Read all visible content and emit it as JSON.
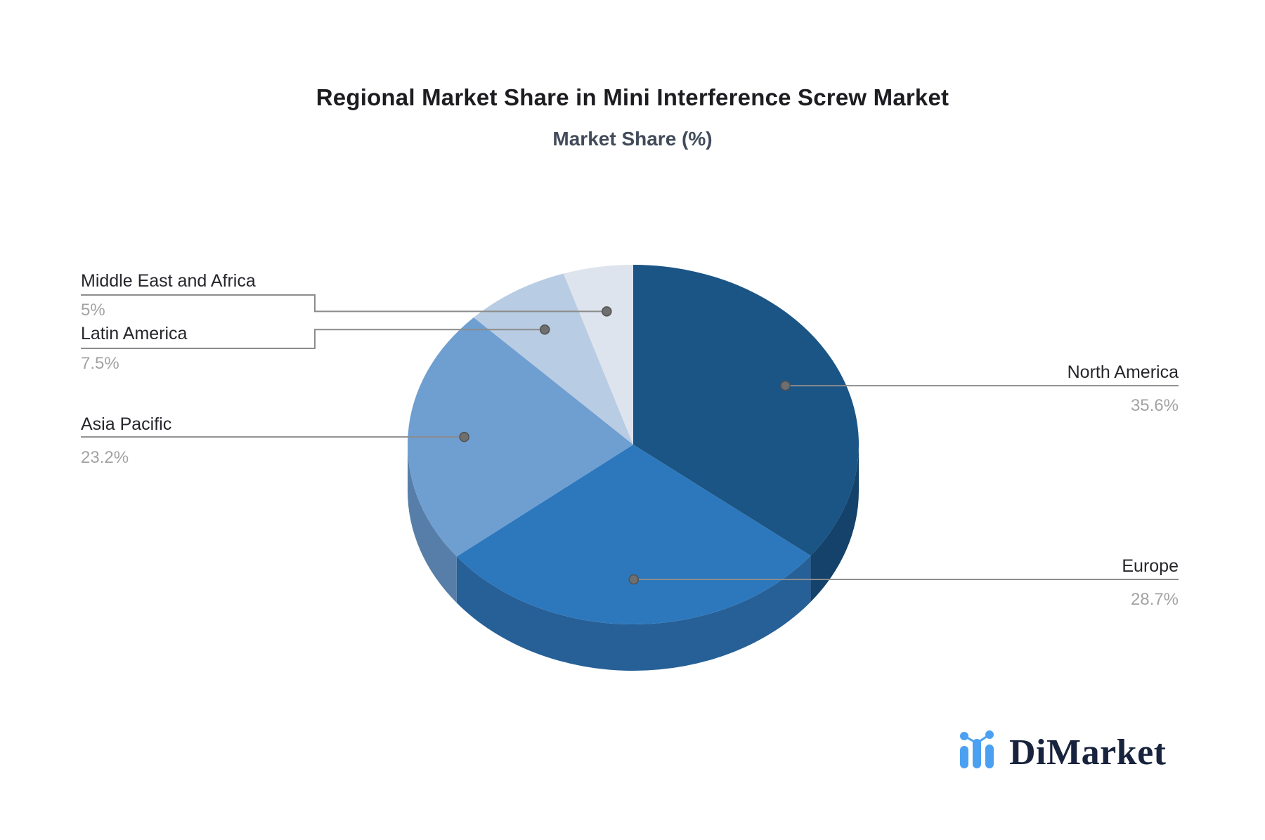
{
  "header": {
    "title": "Regional Market Share in Mini Interference Screw Market",
    "subtitle": "Market Share (%)"
  },
  "chart_data": {
    "type": "pie",
    "effect": "3d",
    "title": "Regional Market Share in Mini Interference Screw Market",
    "subtitle": "Market Share (%)",
    "unit": "%",
    "start_angle_deg": 0,
    "clockwise": true,
    "labels": [
      "North America",
      "Europe",
      "Asia Pacific",
      "Latin America",
      "Middle East and Africa"
    ],
    "values": [
      35.6,
      28.7,
      23.2,
      7.5,
      5
    ],
    "display_values": [
      "35.6%",
      "28.7%",
      "23.2%",
      "7.5%",
      "5%"
    ],
    "colors": [
      "#1B5586",
      "#2D78BD",
      "#6F9ED1",
      "#B8CCE3",
      "#DEE4EE"
    ],
    "side_colors": [
      "#14426A",
      "#266097",
      "#567EA8",
      "#8FA9C7",
      "#B7C3D4"
    ],
    "leader_line_color": "#8c8c8c",
    "leader_dot_color": "#6f6f6f",
    "legend_position": "callout-labels",
    "grid": false
  },
  "branding": {
    "logo_text": "DiMarket",
    "logo_color": "#18233d",
    "logo_icon": "bar-line-chart-icon",
    "logo_icon_color": "#4BA0F2"
  }
}
